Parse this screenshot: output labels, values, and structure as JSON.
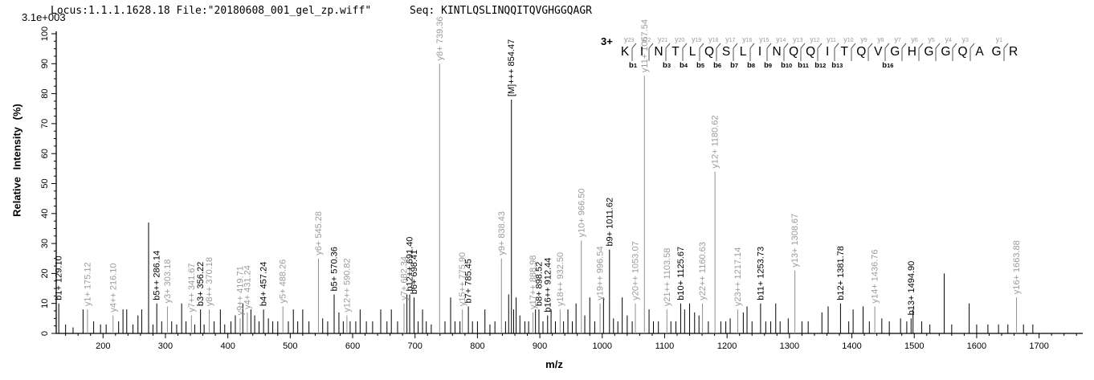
{
  "header": {
    "locus_line": "Locus:1.1.1.1628.18 File:\"20180608_001_gel_zp.wiff\"",
    "seq_line": "Seq: KINTLQSLINQQITQVGHGGQAGR",
    "max_intensity": "3.1e+003"
  },
  "axes": {
    "x_label": "m/z",
    "y_label": "Relative Intensity (%)",
    "x_min": 125,
    "x_max": 1770,
    "x_tick_step": 100,
    "x_minor_step": 20,
    "x_ticks": [
      200,
      300,
      400,
      500,
      600,
      700,
      800,
      900,
      1000,
      1100,
      1200,
      1300,
      1400,
      1500,
      1600,
      1700
    ],
    "y_min": 0,
    "y_max": 100,
    "y_tick_step": 10,
    "y_minor_step": 2.5,
    "y_ticks": [
      0,
      10,
      20,
      30,
      40,
      50,
      60,
      70,
      80,
      90,
      100
    ]
  },
  "colors": {
    "b_ion": "#000000",
    "y_ion_line": "#8f8f8f",
    "y_ion_label": "#9b9b9b",
    "axis": "#000000"
  },
  "sequence": {
    "charge": "3+",
    "peptide": "KINTLQSLINQQITQVGHGGQAGR",
    "residues": [
      {
        "aa": "K",
        "b": "b1",
        "y": "y23"
      },
      {
        "aa": "I",
        "b": null,
        "y": "y22"
      },
      {
        "aa": "N",
        "b": "b3",
        "y": "y21"
      },
      {
        "aa": "T",
        "b": "b4",
        "y": "y20"
      },
      {
        "aa": "L",
        "b": "b5",
        "y": "y19"
      },
      {
        "aa": "Q",
        "b": "b6",
        "y": "y18"
      },
      {
        "aa": "S",
        "b": "b7",
        "y": "y17"
      },
      {
        "aa": "L",
        "b": "b8",
        "y": "y16"
      },
      {
        "aa": "I",
        "b": "b9",
        "y": "y15"
      },
      {
        "aa": "N",
        "b": "b10",
        "y": "y14"
      },
      {
        "aa": "Q",
        "b": "b11",
        "y": "y13"
      },
      {
        "aa": "Q",
        "b": "b12",
        "y": "y12"
      },
      {
        "aa": "I",
        "b": "b13",
        "y": "y11"
      },
      {
        "aa": "T",
        "b": null,
        "y": "y10"
      },
      {
        "aa": "Q",
        "b": null,
        "y": "y9"
      },
      {
        "aa": "V",
        "b": "b16",
        "y": "y8"
      },
      {
        "aa": "G",
        "b": null,
        "y": "y7"
      },
      {
        "aa": "H",
        "b": null,
        "y": "y6"
      },
      {
        "aa": "G",
        "b": null,
        "y": "y5"
      },
      {
        "aa": "G",
        "b": null,
        "y": "y4"
      },
      {
        "aa": "Q",
        "b": null,
        "y": "y3"
      },
      {
        "aa": "A",
        "b": null,
        "y": null
      },
      {
        "aa": "G",
        "b": null,
        "y": "y1"
      },
      {
        "aa": "R",
        "b": null,
        "y": null
      }
    ]
  },
  "chart_data": {
    "type": "bar",
    "subtype": "ms2-stick-spectrum",
    "title": "MS/MS fragment spectrum of KINTLQSLINQQITQVGHGGQAGR (3+)",
    "xlabel": "m/z",
    "ylabel": "Relative Intensity (%)",
    "xlim": [
      125,
      1770
    ],
    "ylim": [
      0,
      100
    ],
    "grid": false,
    "max_intensity_counts": "3.1e+003",
    "labeled_peaks": [
      {
        "mz": 129.1,
        "intensity": 10,
        "label": "b1+ 129.10",
        "ion": "b"
      },
      {
        "mz": 175.12,
        "intensity": 8,
        "label": "y1+ 175.12",
        "ion": "y"
      },
      {
        "mz": 216.1,
        "intensity": 6,
        "label": "y4++ 216.10",
        "ion": "y"
      },
      {
        "mz": 286.14,
        "intensity": 10,
        "label": "b5++ 286.14",
        "ion": "b"
      },
      {
        "mz": 303.18,
        "intensity": 9,
        "label": "y3+ 303.18",
        "ion": "y"
      },
      {
        "mz": 341.67,
        "intensity": 6,
        "label": "y7++ 341.67",
        "ion": "y"
      },
      {
        "mz": 356.22,
        "intensity": 8,
        "label": "b3+ 356.22",
        "ion": "b"
      },
      {
        "mz": 370.18,
        "intensity": 8,
        "label": "y8++ 370.18",
        "ion": "y"
      },
      {
        "mz": 419.71,
        "intensity": 5,
        "label": "y9++ 419.71",
        "ion": "y"
      },
      {
        "mz": 431.24,
        "intensity": 7,
        "label": "y4+ 431.24",
        "ion": "y"
      },
      {
        "mz": 457.24,
        "intensity": 8,
        "label": "b4+ 457.24",
        "ion": "b"
      },
      {
        "mz": 488.26,
        "intensity": 9,
        "label": "y5+ 488.26",
        "ion": "y"
      },
      {
        "mz": 545.28,
        "intensity": 25,
        "label": "y6+ 545.28",
        "ion": "y"
      },
      {
        "mz": 570.36,
        "intensity": 13,
        "label": "b5+ 570.36",
        "ion": "b"
      },
      {
        "mz": 590.82,
        "intensity": 6,
        "label": "y12++ 590.82",
        "ion": "y"
      },
      {
        "mz": 682.34,
        "intensity": 10,
        "label": "y7+ 682.34",
        "ion": "y"
      },
      {
        "mz": 691.4,
        "intensity": 13,
        "label": "b12++ 691.40",
        "ion": "b"
      },
      {
        "mz": 698.41,
        "intensity": 12,
        "label": "b6+ 698.41",
        "ion": "b"
      },
      {
        "mz": 739.36,
        "intensity": 90,
        "label": "y8+ 739.36",
        "ion": "y"
      },
      {
        "mz": 775.9,
        "intensity": 8,
        "label": "y15++ 775.90",
        "ion": "y"
      },
      {
        "mz": 785.45,
        "intensity": 9,
        "label": "b7+ 785.45",
        "ion": "b"
      },
      {
        "mz": 838.43,
        "intensity": 25,
        "label": "y9+ 838.43",
        "ion": "y"
      },
      {
        "mz": 854.47,
        "intensity": 78,
        "label": "[M]+++ 854.47",
        "ion": "M"
      },
      {
        "mz": 888.98,
        "intensity": 7,
        "label": "y17++ 888.98",
        "ion": "y"
      },
      {
        "mz": 898.52,
        "intensity": 8,
        "label": "b8+ 898.52",
        "ion": "b"
      },
      {
        "mz": 912.44,
        "intensity": 6,
        "label": "b16++ 912.44",
        "ion": "b"
      },
      {
        "mz": 932.5,
        "intensity": 8,
        "label": "y18++ 932.50",
        "ion": "y"
      },
      {
        "mz": 966.5,
        "intensity": 31,
        "label": "y10+ 966.50",
        "ion": "y"
      },
      {
        "mz": 996.54,
        "intensity": 10,
        "label": "y19++ 996.54",
        "ion": "y"
      },
      {
        "mz": 1011.62,
        "intensity": 28,
        "label": "b9+ 1011.62",
        "ion": "b"
      },
      {
        "mz": 1053.07,
        "intensity": 10,
        "label": "y20++ 1053.07",
        "ion": "y"
      },
      {
        "mz": 1067.54,
        "intensity": 86,
        "label": "y11+ 1067.54",
        "ion": "y"
      },
      {
        "mz": 1103.58,
        "intensity": 8,
        "label": "y21++ 1103.58",
        "ion": "y"
      },
      {
        "mz": 1125.67,
        "intensity": 10,
        "label": "b10+ 1125.67",
        "ion": "b"
      },
      {
        "mz": 1160.63,
        "intensity": 10,
        "label": "y22++ 1160.63",
        "ion": "y"
      },
      {
        "mz": 1180.62,
        "intensity": 54,
        "label": "y12+ 1180.62",
        "ion": "y"
      },
      {
        "mz": 1217.14,
        "intensity": 8,
        "label": "y23++ 1217.14",
        "ion": "y"
      },
      {
        "mz": 1253.73,
        "intensity": 10,
        "label": "b11+ 1253.73",
        "ion": "b"
      },
      {
        "mz": 1308.67,
        "intensity": 21,
        "label": "y13+ 1308.67",
        "ion": "y"
      },
      {
        "mz": 1381.78,
        "intensity": 10,
        "label": "b12+ 1381.78",
        "ion": "b"
      },
      {
        "mz": 1436.76,
        "intensity": 9,
        "label": "y14+ 1436.76",
        "ion": "y"
      },
      {
        "mz": 1494.9,
        "intensity": 5,
        "label": "b13+ 1494.90",
        "ion": "b"
      },
      {
        "mz": 1663.88,
        "intensity": 12,
        "label": "y16+ 1663.88",
        "ion": "y"
      }
    ],
    "unlabeled_peaks": [
      [
        140,
        3
      ],
      [
        152,
        2
      ],
      [
        168,
        8
      ],
      [
        185,
        4
      ],
      [
        196,
        3
      ],
      [
        205,
        3
      ],
      [
        225,
        4
      ],
      [
        232,
        8
      ],
      [
        238,
        8
      ],
      [
        248,
        3
      ],
      [
        256,
        6
      ],
      [
        262,
        8
      ],
      [
        273,
        37
      ],
      [
        280,
        3
      ],
      [
        294,
        4
      ],
      [
        310,
        4
      ],
      [
        318,
        3
      ],
      [
        326,
        10
      ],
      [
        333,
        4
      ],
      [
        347,
        3
      ],
      [
        362,
        3
      ],
      [
        378,
        4
      ],
      [
        388,
        8
      ],
      [
        395,
        3
      ],
      [
        405,
        4
      ],
      [
        412,
        6
      ],
      [
        424,
        10
      ],
      [
        437,
        8
      ],
      [
        443,
        6
      ],
      [
        450,
        4
      ],
      [
        465,
        5
      ],
      [
        472,
        4
      ],
      [
        480,
        4
      ],
      [
        497,
        4
      ],
      [
        505,
        8
      ],
      [
        512,
        4
      ],
      [
        520,
        8
      ],
      [
        530,
        4
      ],
      [
        552,
        5
      ],
      [
        560,
        4
      ],
      [
        578,
        7
      ],
      [
        585,
        4
      ],
      [
        596,
        4
      ],
      [
        605,
        4
      ],
      [
        612,
        8
      ],
      [
        622,
        4
      ],
      [
        632,
        4
      ],
      [
        645,
        8
      ],
      [
        655,
        4
      ],
      [
        662,
        8
      ],
      [
        672,
        4
      ],
      [
        687,
        13
      ],
      [
        705,
        4
      ],
      [
        712,
        8
      ],
      [
        718,
        4
      ],
      [
        726,
        3
      ],
      [
        748,
        4
      ],
      [
        757,
        12
      ],
      [
        764,
        4
      ],
      [
        772,
        4
      ],
      [
        792,
        4
      ],
      [
        800,
        4
      ],
      [
        812,
        8
      ],
      [
        820,
        3
      ],
      [
        828,
        4
      ],
      [
        845,
        4
      ],
      [
        850,
        13
      ],
      [
        858,
        8
      ],
      [
        862,
        12
      ],
      [
        868,
        6
      ],
      [
        876,
        4
      ],
      [
        882,
        4
      ],
      [
        893,
        8
      ],
      [
        905,
        4
      ],
      [
        918,
        8
      ],
      [
        925,
        4
      ],
      [
        938,
        4
      ],
      [
        945,
        8
      ],
      [
        952,
        4
      ],
      [
        958,
        10
      ],
      [
        972,
        6
      ],
      [
        980,
        12
      ],
      [
        988,
        4
      ],
      [
        1002,
        12
      ],
      [
        1018,
        5
      ],
      [
        1025,
        4
      ],
      [
        1032,
        12
      ],
      [
        1040,
        6
      ],
      [
        1048,
        4
      ],
      [
        1075,
        8
      ],
      [
        1082,
        4
      ],
      [
        1090,
        4
      ],
      [
        1110,
        4
      ],
      [
        1118,
        4
      ],
      [
        1132,
        8
      ],
      [
        1140,
        10
      ],
      [
        1148,
        7
      ],
      [
        1155,
        6
      ],
      [
        1170,
        4
      ],
      [
        1190,
        4
      ],
      [
        1198,
        4
      ],
      [
        1205,
        5
      ],
      [
        1226,
        7
      ],
      [
        1232,
        9
      ],
      [
        1240,
        4
      ],
      [
        1262,
        4
      ],
      [
        1270,
        4
      ],
      [
        1278,
        10
      ],
      [
        1285,
        4
      ],
      [
        1298,
        5
      ],
      [
        1320,
        4
      ],
      [
        1330,
        4
      ],
      [
        1352,
        7
      ],
      [
        1362,
        9
      ],
      [
        1395,
        4
      ],
      [
        1402,
        8
      ],
      [
        1418,
        9
      ],
      [
        1428,
        4
      ],
      [
        1448,
        5
      ],
      [
        1460,
        4
      ],
      [
        1478,
        5
      ],
      [
        1488,
        4
      ],
      [
        1498,
        8
      ],
      [
        1512,
        4
      ],
      [
        1525,
        3
      ],
      [
        1548,
        20
      ],
      [
        1560,
        3
      ],
      [
        1588,
        10
      ],
      [
        1600,
        3
      ],
      [
        1618,
        3
      ],
      [
        1635,
        3
      ],
      [
        1650,
        3
      ],
      [
        1675,
        3
      ],
      [
        1690,
        3
      ]
    ]
  }
}
